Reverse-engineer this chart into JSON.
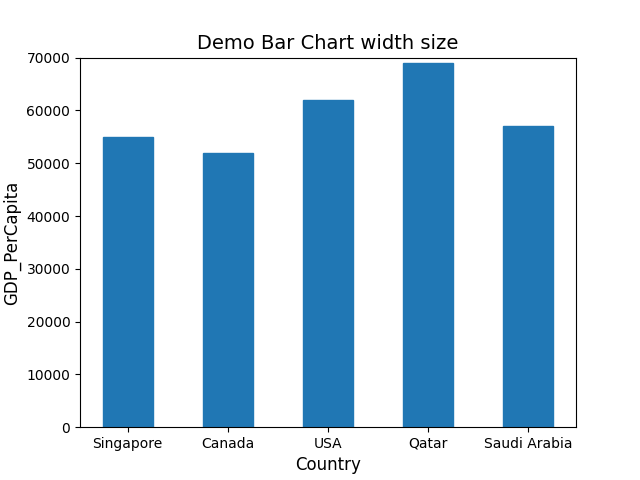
{
  "categories": [
    "Singapore",
    "Canada",
    "USA",
    "Qatar",
    "Saudi Arabia"
  ],
  "values": [
    55000,
    52000,
    62000,
    69000,
    57000
  ],
  "bar_color": "#2077b4",
  "title": "Demo Bar Chart width size",
  "xlabel": "Country",
  "ylabel": "GDP_PerCapita",
  "ylim": [
    0,
    70000
  ],
  "yticks": [
    0,
    10000,
    20000,
    30000,
    40000,
    50000,
    60000,
    70000
  ],
  "title_fontsize": 14,
  "label_fontsize": 12,
  "tick_fontsize": 10,
  "bar_width": 0.5,
  "figsize": [
    6.4,
    4.8
  ],
  "dpi": 100
}
